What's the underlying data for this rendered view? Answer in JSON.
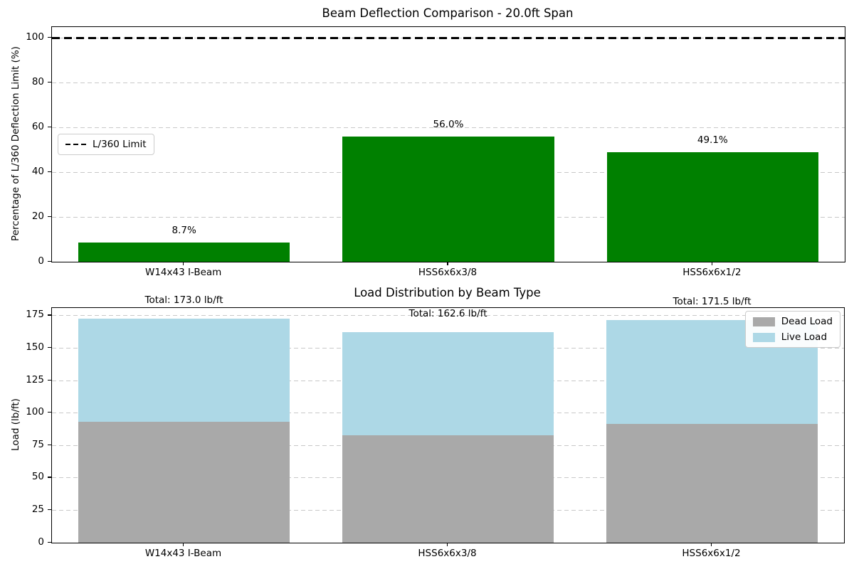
{
  "chart_data": [
    {
      "type": "bar",
      "title": "Beam Deflection Comparison - 20.0ft Span",
      "ylabel": "Percentage of L/360 Deflection Limit (%)",
      "categories": [
        "W14x43 I-Beam",
        "HSS6x6x3/8",
        "HSS6x6x1/2"
      ],
      "values": [
        8.7,
        56.0,
        49.1
      ],
      "bar_labels": [
        "8.7%",
        "56.0%",
        "49.1%"
      ],
      "bar_color": "#008000",
      "yticks": [
        0,
        20,
        40,
        60,
        80,
        100
      ],
      "ylim": [
        0,
        105
      ],
      "grid": true,
      "legend_position": "center-left",
      "limit_line": {
        "value": 100,
        "label": "L/360 Limit",
        "color": "#000000",
        "style": "dashed"
      },
      "legend": {
        "entries": [
          {
            "label": "L/360 Limit",
            "marker": "dashed-line",
            "color": "#000000"
          }
        ]
      }
    },
    {
      "type": "stacked_bar",
      "title": "Load Distribution by Beam Type",
      "ylabel": "Load (lb/ft)",
      "categories": [
        "W14x43 I-Beam",
        "HSS6x6x3/8",
        "HSS6x6x1/2"
      ],
      "series": [
        {
          "name": "Dead Load",
          "color": "#a9a9a9",
          "values": [
            93.0,
            82.6,
            91.5
          ]
        },
        {
          "name": "Live Load",
          "color": "#add8e6",
          "values": [
            80.0,
            80.0,
            80.0
          ]
        }
      ],
      "totals": [
        173.0,
        162.6,
        171.5
      ],
      "total_labels": [
        "Total: 173.0 lb/ft",
        "Total: 162.6 lb/ft",
        "Total: 171.5 lb/ft"
      ],
      "yticks": [
        0,
        25,
        50,
        75,
        100,
        125,
        150,
        175
      ],
      "ylim": [
        0,
        181
      ],
      "grid": true,
      "legend_position": "top-right",
      "legend": {
        "entries": [
          {
            "label": "Dead Load",
            "marker": "patch",
            "color": "#a9a9a9"
          },
          {
            "label": "Live Load",
            "marker": "patch",
            "color": "#add8e6"
          }
        ]
      }
    }
  ]
}
